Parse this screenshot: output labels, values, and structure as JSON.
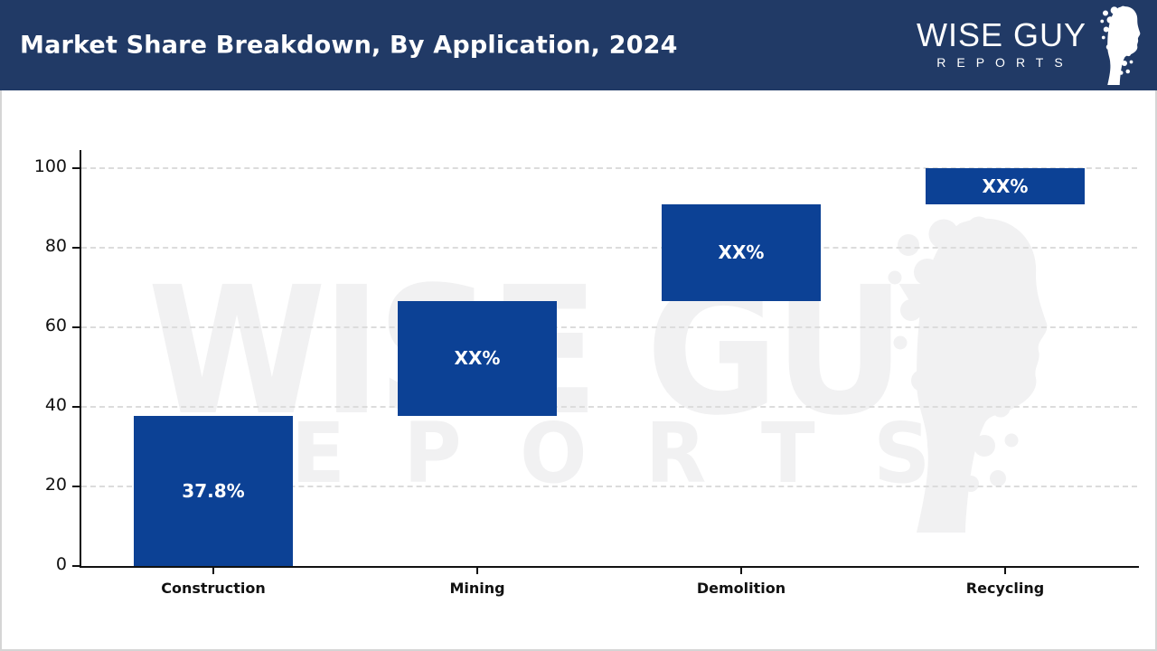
{
  "header": {
    "title": "Market Share Breakdown, By Application, 2024",
    "logo": {
      "brand": "WISE GUY",
      "sub": "REPORTS"
    }
  },
  "watermark": {
    "brand": "WISE GUY",
    "sub": "REPORTS"
  },
  "chart_data": {
    "type": "bar",
    "subtype": "waterfall",
    "title": "Market Share Breakdown, By Application, 2024",
    "categories": [
      "Construction",
      "Mining",
      "Demolition",
      "Recycling"
    ],
    "series": [
      {
        "name": "Market Share",
        "segments": [
          {
            "category": "Construction",
            "start": 0,
            "end": 37.8,
            "label": "37.8%"
          },
          {
            "category": "Mining",
            "start": 37.8,
            "end": 66.6,
            "label": "XX%"
          },
          {
            "category": "Demolition",
            "start": 66.6,
            "end": 90.9,
            "label": "XX%"
          },
          {
            "category": "Recycling",
            "start": 90.9,
            "end": 100,
            "label": "XX%"
          }
        ]
      }
    ],
    "xlabel": "",
    "ylabel": "",
    "ylim": [
      0,
      100
    ],
    "yticks": [
      0,
      20,
      40,
      60,
      80,
      100
    ],
    "grid": "horizontal-dashed",
    "legend": "none",
    "bar_color": "#0c4195",
    "bar_label_color": "#ffffff"
  },
  "colors": {
    "header_bg": "#213a66",
    "bar": "#0c4195",
    "grid": "#dcdcdc",
    "axis": "#111111",
    "watermark": "#f1f1f2",
    "frame_border": "#d5d5d5"
  }
}
